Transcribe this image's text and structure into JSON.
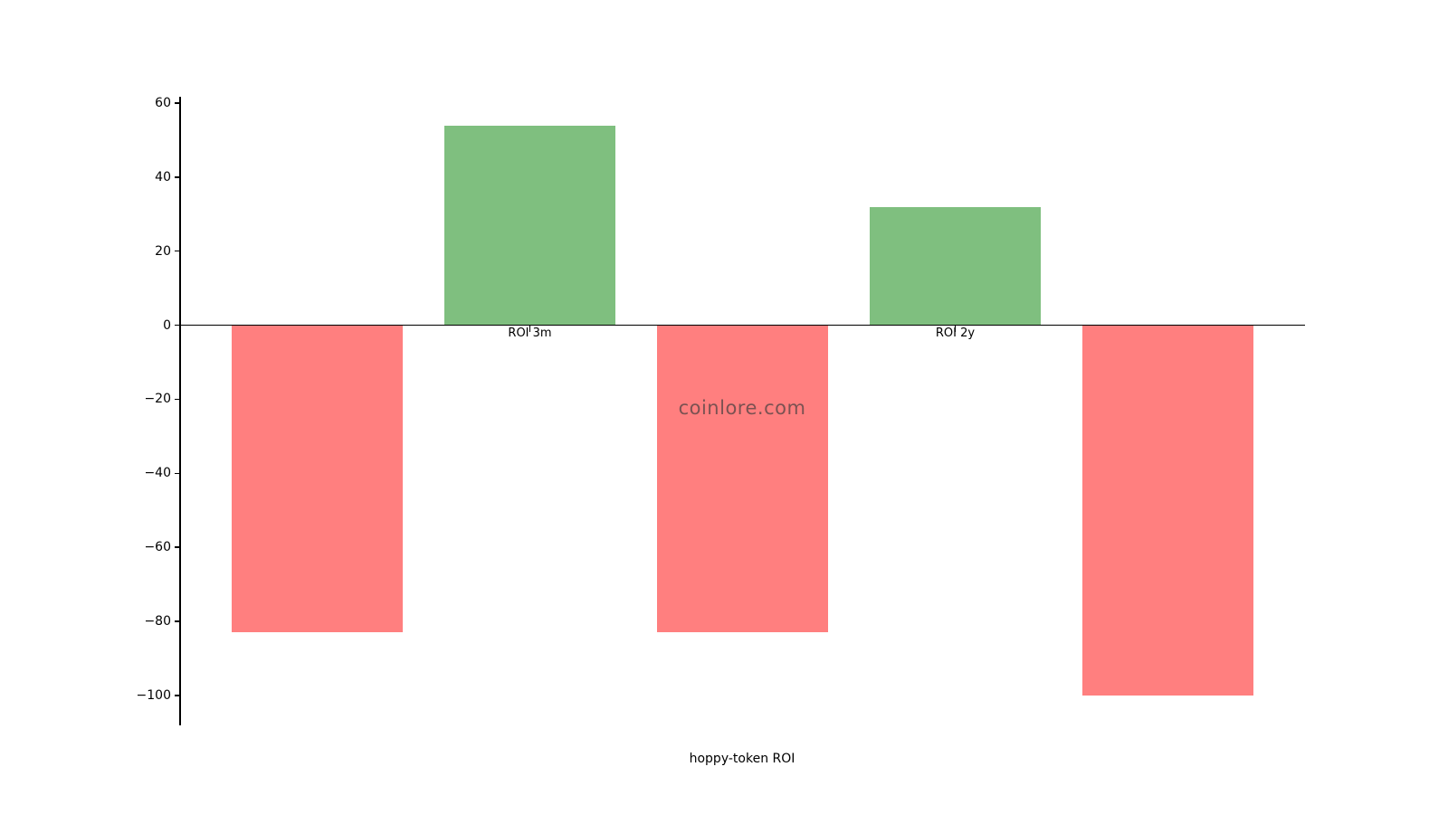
{
  "chart_data": {
    "type": "bar",
    "title": "hoppy-token ROI",
    "watermark": "coinlore.com",
    "categories": [
      "",
      "ROI 3m",
      "",
      "ROI 2y",
      ""
    ],
    "values": [
      -83,
      54,
      -83,
      32,
      -100
    ],
    "bar_colors": [
      "#ff7f7f",
      "#7fbf7f",
      "#ff7f7f",
      "#7fbf7f",
      "#ff7f7f"
    ],
    "y_ticks": [
      60,
      40,
      20,
      0,
      -20,
      -40,
      -60,
      -80,
      -100
    ],
    "ylim": [
      -107.7,
      61.7
    ],
    "xlabel": "",
    "ylabel": "",
    "grid": false,
    "legend": false,
    "colors": {
      "positive_bar": "#7fbf7f",
      "negative_bar": "#ff7f7f",
      "axis": "#000000",
      "watermark_text": "#3c3c3c",
      "background": "#ffffff"
    }
  }
}
